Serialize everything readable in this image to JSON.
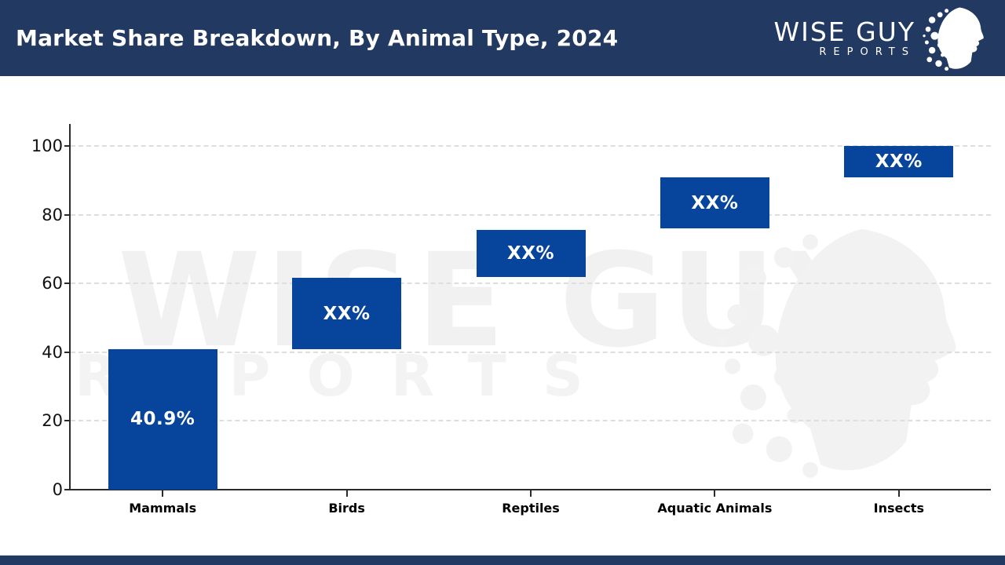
{
  "header": {
    "title": "Market Share Breakdown, By Animal Type, 2024",
    "logo": {
      "line1": "WISE GUY",
      "line2": "REPORTS"
    }
  },
  "watermark": {
    "line1": "WISE GUY",
    "line2": "REPORTS"
  },
  "colors": {
    "header_bg": "#223962",
    "bar": "#07449c",
    "bar_label": "#ffffff",
    "gridline": "#dedede",
    "axis": "#2b2b2b",
    "watermark": "#f1f1f1"
  },
  "chart_data": {
    "type": "bar",
    "variant": "waterfall",
    "title": "Market Share Breakdown, By Animal Type, 2024",
    "categories": [
      "Mammals",
      "Birds",
      "Reptiles",
      "Aquatic Animals",
      "Insects"
    ],
    "segments": [
      {
        "category": "Mammals",
        "start": 0,
        "end": 40.9,
        "label": "40.9%"
      },
      {
        "category": "Birds",
        "start": 40.9,
        "end": 61.6,
        "label": "XX%"
      },
      {
        "category": "Reptiles",
        "start": 61.8,
        "end": 75.6,
        "label": "XX%"
      },
      {
        "category": "Aquatic Animals",
        "start": 76.0,
        "end": 90.8,
        "label": "XX%"
      },
      {
        "category": "Insects",
        "start": 90.9,
        "end": 100.0,
        "label": "XX%"
      }
    ],
    "xlabel": "",
    "ylabel": "",
    "yticks": [
      0,
      20,
      40,
      60,
      80,
      100
    ],
    "ylim": [
      0,
      105
    ],
    "grid": "horizontal-dashed",
    "legend": "none",
    "bar_color": "#07449c",
    "label_color": "#ffffff"
  }
}
